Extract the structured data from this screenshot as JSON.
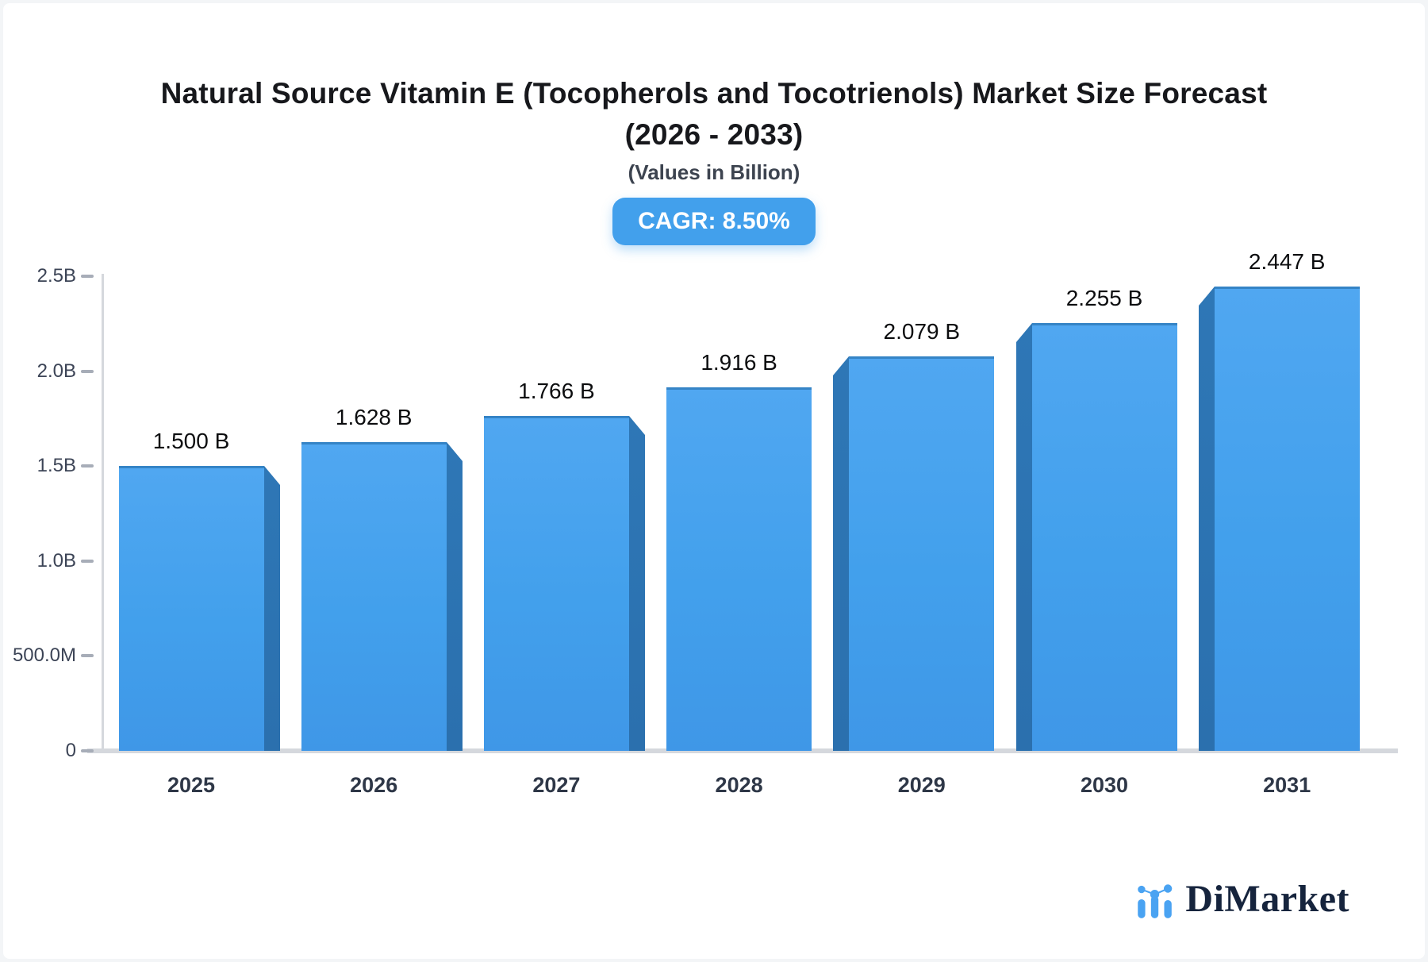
{
  "header": {
    "title": "Natural Source Vitamin E (Tocopherols and Tocotrienols) Market Size Forecast",
    "title_range": "(2026 - 2033)",
    "subtitle": "(Values in Billion)",
    "cagr_badge": "CAGR: 8.50%"
  },
  "chart_data": {
    "type": "bar",
    "categories": [
      "2025",
      "2026",
      "2027",
      "2028",
      "2029",
      "2030",
      "2031"
    ],
    "values": [
      1.5,
      1.628,
      1.766,
      1.916,
      2.079,
      2.255,
      2.447
    ],
    "value_labels": [
      "1.500 B",
      "1.628 B",
      "1.766 B",
      "1.916 B",
      "2.079 B",
      "2.255 B",
      "2.447 B"
    ],
    "title": "Natural Source Vitamin E (Tocopherols and Tocotrienols) Market Size Forecast (2026 - 2033)",
    "subtitle": "(Values in Billion)",
    "annotation": "CAGR: 8.50%",
    "xlabel": "",
    "ylabel": "",
    "ylim": [
      0,
      2.5
    ],
    "ytick_values": [
      0,
      0.5,
      1.0,
      1.5,
      2.0,
      2.5
    ],
    "ytick_labels": [
      "0",
      "500.0M",
      "1.0B",
      "1.5B",
      "2.0B",
      "2.5B"
    ],
    "grid": false,
    "legend": false,
    "style": "3d-perspective-columns",
    "bar_face_color": "#42A0EC",
    "bar_side_color": "#2E77B6",
    "axis_color": "#D5D8DD"
  },
  "footer": {
    "brand": "DiMarket",
    "brand_icon": "bar-chart-logo-icon"
  }
}
